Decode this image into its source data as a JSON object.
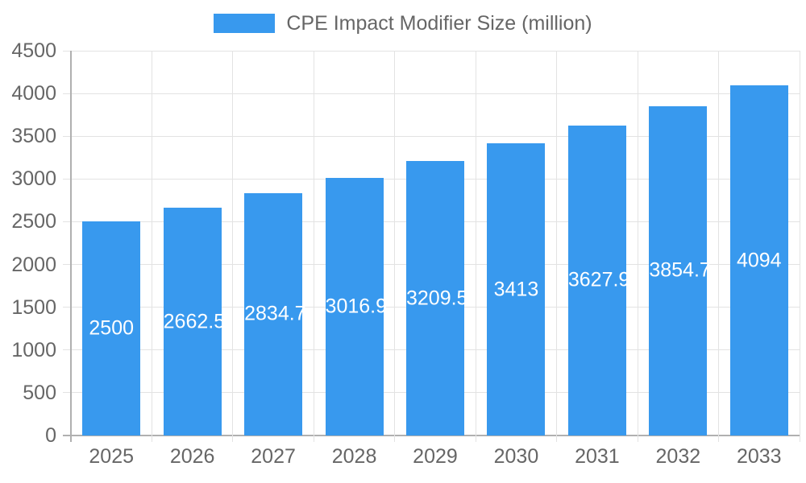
{
  "legend": {
    "label": "CPE Impact Modifier Size (million)",
    "swatch_color": "#3899ee"
  },
  "chart_data": {
    "type": "bar",
    "title": "CPE Impact Modifier Size (million)",
    "xlabel": "",
    "ylabel": "",
    "categories": [
      "2025",
      "2026",
      "2027",
      "2028",
      "2029",
      "2030",
      "2031",
      "2032",
      "2033"
    ],
    "values": [
      2500,
      2662.5,
      2834.7,
      3016.9,
      3209.5,
      3413,
      3627.9,
      3854.7,
      4094
    ],
    "bar_labels": [
      "2500",
      "2662.5",
      "2834.7",
      "3016.9",
      "3209.5",
      "3413",
      "3627.9",
      "3854.7",
      "4094"
    ],
    "ylim": [
      0,
      4500
    ],
    "ytick_step": 500,
    "ytick_labels": [
      "0",
      "500",
      "1000",
      "1500",
      "2000",
      "2500",
      "3000",
      "3500",
      "4000",
      "4500"
    ],
    "grid": true,
    "legend_position": "top",
    "bar_color": "#3899ee",
    "bar_value_label_color": "#ffffff",
    "axis_text_color": "#666666",
    "gridline_color": "#e3e3e3",
    "axis_line_color": "#b0b0b0",
    "background_color": "#ffffff"
  }
}
